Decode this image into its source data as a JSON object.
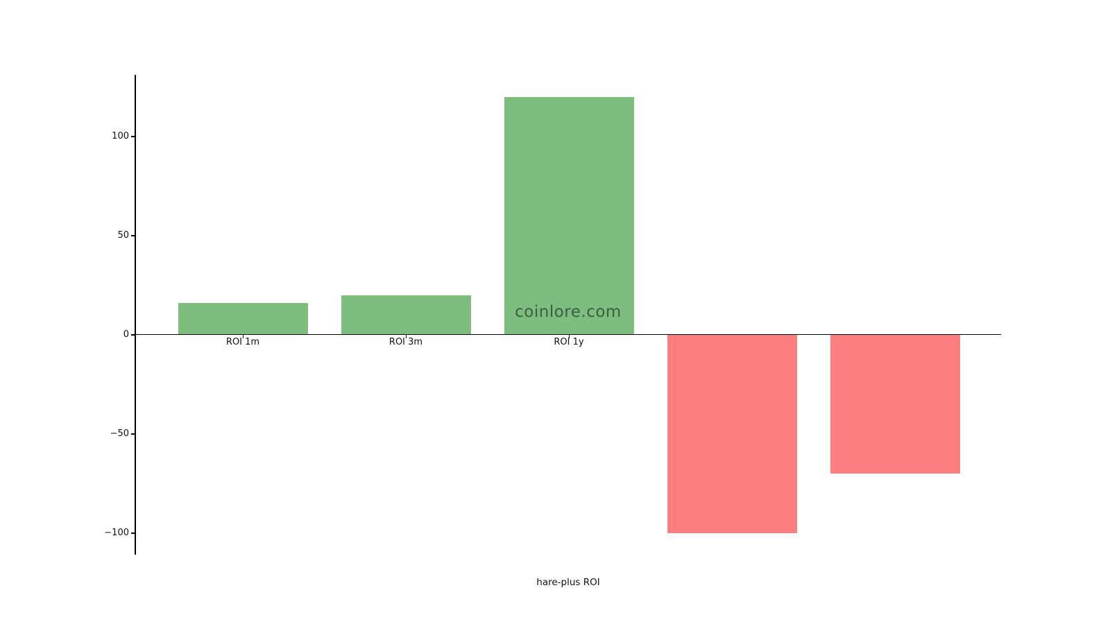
{
  "chart_data": {
    "type": "bar",
    "categories": [
      "ROI 1m",
      "ROI 3m",
      "ROI 1y",
      "",
      ""
    ],
    "values": [
      16,
      20,
      120,
      -100,
      -70
    ],
    "title": "",
    "xlabel": "hare-plus ROI",
    "ylabel": "",
    "yticks": [
      100,
      50,
      0,
      -50,
      -100
    ],
    "yticklabels": [
      "100",
      "50",
      "0",
      "−50",
      "−100"
    ],
    "ylim": [
      -111,
      131.5
    ],
    "grid": false,
    "legend": false,
    "positive_color": "#7dbe7e",
    "negative_color": "#fe7f7f",
    "watermark": "coinlore.com"
  },
  "colors": {
    "background": "#ffffff",
    "axis": "#000000",
    "tick_text": "#111111",
    "watermark_text": "#3e5c42"
  }
}
